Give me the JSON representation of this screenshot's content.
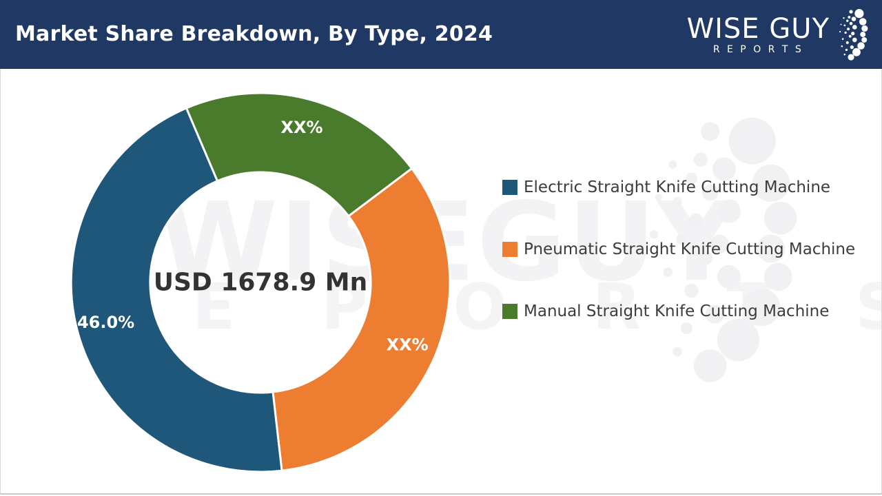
{
  "header": {
    "title": "Market Share Breakdown, By Type, 2024",
    "logo": {
      "line1": "WISE GUY",
      "line2": "R E P O R T S"
    }
  },
  "watermark": {
    "line1": "WISEGUY",
    "line2": "E P O R T S"
  },
  "colors": {
    "header_bg": "#1F3864",
    "electric_blue": "#1F577B",
    "pneumatic_orange": "#ED7D31",
    "manual_green": "#4A7A2B",
    "center_text": "#333333",
    "slice_label_text": "#FFFFFF"
  },
  "chart_data": {
    "type": "pie",
    "variant": "donut",
    "title": "Market Share Breakdown, By Type, 2024",
    "center_label": "USD 1678.9 Mn",
    "unit": "%",
    "legend_position": "right",
    "grid": false,
    "series": [
      {
        "name": "Electric Straight Knife Cutting Machine",
        "label": "46.0%",
        "value_pct": 46.0,
        "masked": false,
        "color": "#1F577B",
        "start_angle": 173.5,
        "end_angle": 337.0
      },
      {
        "name": "Pneumatic Straight Knife Cutting Machine",
        "label": "XX%",
        "value_pct": 33.5,
        "masked": true,
        "color": "#ED7D31",
        "start_angle": 53.0,
        "end_angle": 173.5
      },
      {
        "name": "Manual Straight Knife Cutting Machine",
        "label": "XX%",
        "value_pct": 20.5,
        "masked": true,
        "color": "#4A7A2B",
        "start_angle": 337.0,
        "end_angle": 413.0
      }
    ]
  }
}
